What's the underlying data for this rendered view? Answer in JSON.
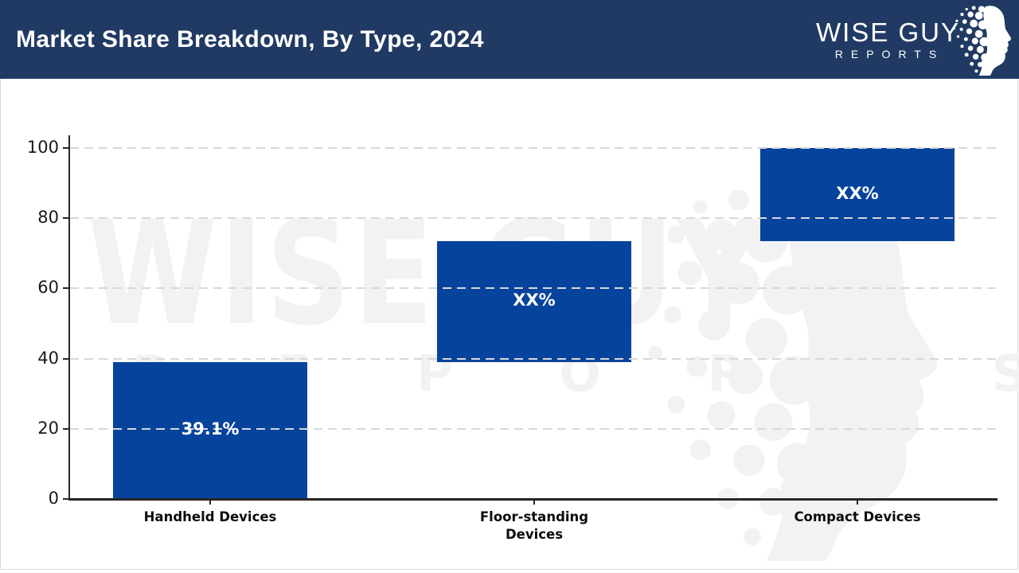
{
  "header": {
    "title": "Market Share Breakdown, By Type, 2024",
    "bg_color": "#213a63",
    "logo": {
      "name": "WISE GUY",
      "subname": "REPORTS"
    }
  },
  "watermark": {
    "line1": "WISE GUY",
    "line2": "R E P O R T S"
  },
  "chart_data": {
    "type": "bar",
    "subtype": "waterfall-stacked-range",
    "title": "Market Share Breakdown, By Type, 2024",
    "categories": [
      "Handheld Devices",
      "Floor-standing Devices",
      "Compact Devices"
    ],
    "segments": [
      {
        "category": "Handheld Devices",
        "start": 0,
        "end": 39.1,
        "label": "39.1%"
      },
      {
        "category": "Floor-standing Devices",
        "start": 39.1,
        "end": 73.4,
        "label": "XX%"
      },
      {
        "category": "Compact Devices",
        "start": 73.4,
        "end": 100,
        "label": "XX%"
      }
    ],
    "xlabel": "",
    "ylabel": "",
    "yticks": [
      0,
      20,
      40,
      60,
      80,
      100
    ],
    "ylim": [
      0,
      103.6
    ],
    "grid": "horizontal-dashed",
    "legend": "none",
    "bar_color": "#06439c",
    "bar_label_color": "#ffffff",
    "axis_color": "#262626",
    "grid_color": "#d8d8d8",
    "tick_label_color": "#1a1a1a"
  }
}
